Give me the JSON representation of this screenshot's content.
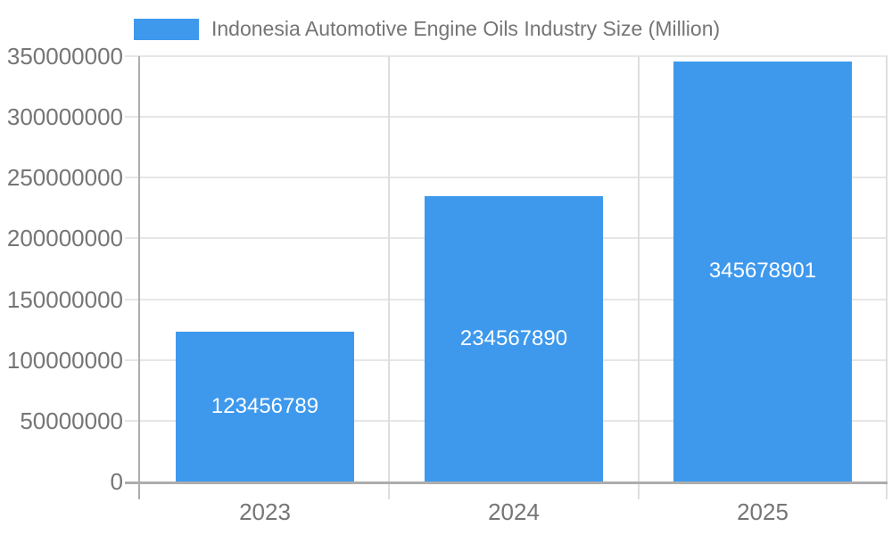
{
  "chart_data": {
    "type": "bar",
    "title": "Indonesia Automotive Engine Oils Industry Size (Million)",
    "categories": [
      "2023",
      "2024",
      "2025"
    ],
    "series": [
      {
        "name": "Indonesia Automotive Engine Oils Industry Size (Million)",
        "values": [
          123456789,
          234567890,
          345678901
        ]
      }
    ],
    "bar_value_labels": [
      "123456789",
      "234567890",
      "345678901"
    ],
    "y_tick_labels": [
      "0",
      "50000000",
      "100000000",
      "150000000",
      "200000000",
      "250000000",
      "300000000",
      "350000000"
    ],
    "ylim": [
      0,
      350000000
    ],
    "ytick_step": 50000000,
    "xlabel": "",
    "ylabel": "",
    "grid": true,
    "legend_position": "top-left",
    "colors": {
      "bar": "#3E99ED",
      "axis_text": "#757575",
      "value_label_text": "#FFFFFF",
      "gridline": "#E6E6E6",
      "category_separator": "#DEDEDE",
      "axis_line": "#ADADAD",
      "background": "#FFFFFF"
    }
  }
}
